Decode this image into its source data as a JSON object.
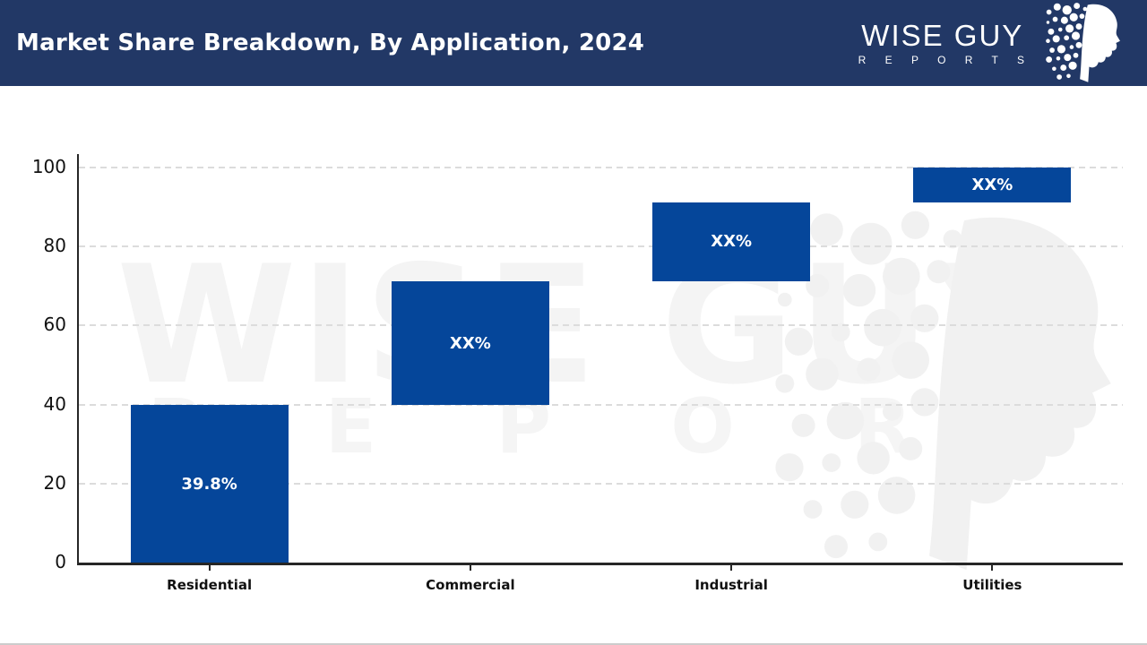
{
  "header": {
    "title": "Market Share Breakdown, By Application, 2024",
    "background_color": "#223866",
    "logo": {
      "line1": "WISE GUY",
      "line2": "R E P O R T S"
    }
  },
  "icons": {
    "logo_face": "dotted-head-profile"
  },
  "watermark": {
    "line1": "WISE GUY",
    "line2": "R E P O R T S"
  },
  "chart_data": {
    "type": "bar",
    "subtype": "waterfall",
    "title": "Market Share Breakdown, By Application, 2024",
    "xlabel": "",
    "ylabel": "",
    "ylim": [
      0,
      100
    ],
    "yticks": [
      0,
      20,
      40,
      60,
      80,
      100
    ],
    "grid": "horizontal-dashed",
    "legend": "none",
    "bar_color": "#05469a",
    "bar_label_color": "#ffffff",
    "categories": [
      "Residential",
      "Commercial",
      "Industrial",
      "Utilities"
    ],
    "segments": [
      {
        "category": "Residential",
        "start": 0,
        "end": 39.8,
        "label": "39.8%"
      },
      {
        "category": "Commercial",
        "start": 39.8,
        "end": 71.3,
        "label": "XX%"
      },
      {
        "category": "Industrial",
        "start": 71.3,
        "end": 91.2,
        "label": "XX%"
      },
      {
        "category": "Utilities",
        "start": 91.2,
        "end": 100,
        "label": "XX%"
      }
    ]
  }
}
